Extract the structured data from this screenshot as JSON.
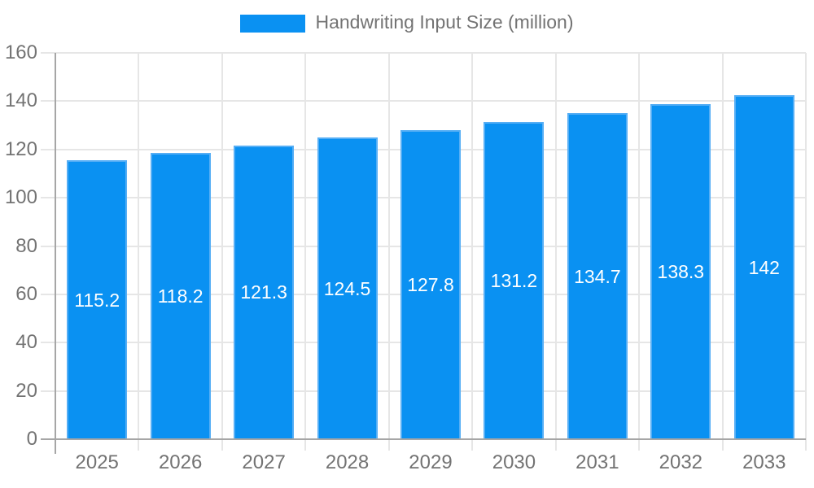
{
  "legend": {
    "label": "Handwriting Input Size (million)"
  },
  "colors": {
    "bar": "#0A91F2",
    "bar_edge": "#55AEF5",
    "bar_label": "#FFFFFF",
    "grid": "#E6E6E6",
    "axis": "#A6A6A6",
    "text": "#737373",
    "background": "#FFFFFF"
  },
  "chart_data": {
    "type": "bar",
    "title": "Handwriting Input Size (million)",
    "categories": [
      "2025",
      "2026",
      "2027",
      "2028",
      "2029",
      "2030",
      "2031",
      "2032",
      "2033"
    ],
    "series": [
      {
        "name": "Handwriting Input Size (million)",
        "values": [
          115.2,
          118.2,
          121.3,
          124.5,
          127.8,
          131.2,
          134.7,
          138.3,
          142
        ]
      }
    ],
    "value_labels": [
      "115.2",
      "118.2",
      "121.3",
      "124.5",
      "127.8",
      "131.2",
      "134.7",
      "138.3",
      "142"
    ],
    "xlabel": "",
    "ylabel": "",
    "ylim": [
      0,
      160
    ],
    "yticks": [
      0,
      20,
      40,
      60,
      80,
      100,
      120,
      140,
      160
    ],
    "grid": true,
    "legend_position": "top-center",
    "bar_label_position": "center-inside"
  }
}
